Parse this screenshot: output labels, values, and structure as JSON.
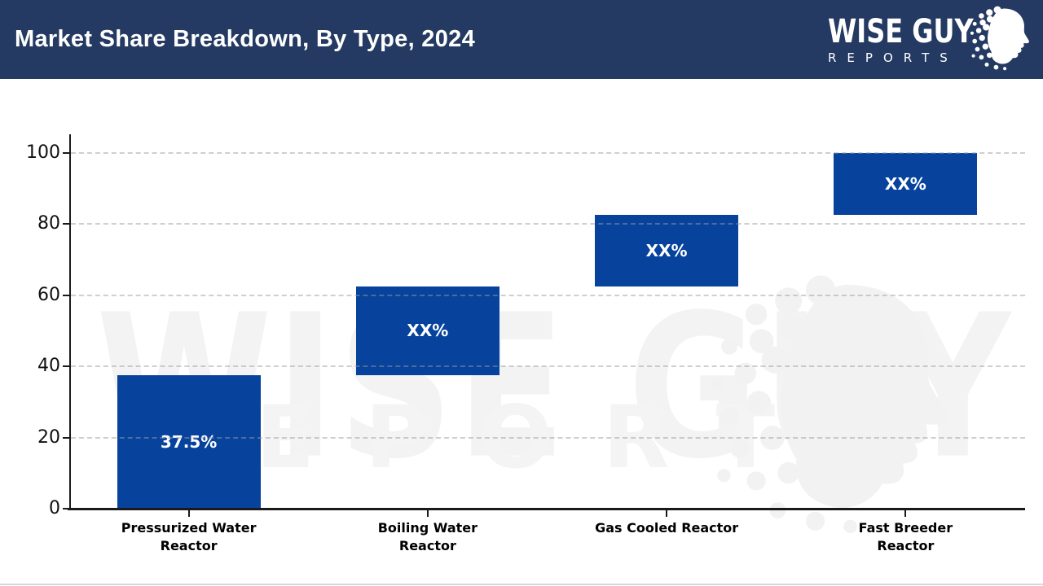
{
  "header": {
    "title": "Market Share Breakdown, By Type, 2024",
    "logo": {
      "name": "WISE GUY",
      "subtitle": "REPORTS"
    },
    "background_color": "#243A62"
  },
  "watermark": {
    "line1": "WISE GUY",
    "line2": "REPORTS"
  },
  "colors": {
    "bar": "#07439C",
    "bar_label": "#FFFFFF",
    "grid": "#C9C9C9",
    "axis": "#1A1A1A",
    "watermark": "#F3F3F3",
    "footer_divider": "#D8D8D8"
  },
  "chart_data": {
    "type": "bar",
    "subtype": "floating-waterfall",
    "title": "Market Share Breakdown, By Type, 2024",
    "categories": [
      "Pressurized Water\nReactor",
      "Boiling Water\nReactor",
      "Gas Cooled Reactor",
      "Fast Breeder\nReactor"
    ],
    "segments": [
      {
        "category": "Pressurized Water Reactor",
        "start": 0,
        "end": 37.5,
        "label": "37.5%"
      },
      {
        "category": "Boiling Water Reactor",
        "start": 37.5,
        "end": 62.5,
        "label": "XX%"
      },
      {
        "category": "Gas Cooled Reactor",
        "start": 62.5,
        "end": 82.5,
        "label": "XX%"
      },
      {
        "category": "Fast Breeder Reactor",
        "start": 82.5,
        "end": 100,
        "label": "XX%"
      }
    ],
    "y_ticks": [
      0,
      20,
      40,
      60,
      80,
      100
    ],
    "ylim": [
      0,
      105
    ],
    "xlabel": "",
    "ylabel": "",
    "grid": "dashed-horizontal",
    "legend": "none",
    "bar_color": "#07439C"
  }
}
